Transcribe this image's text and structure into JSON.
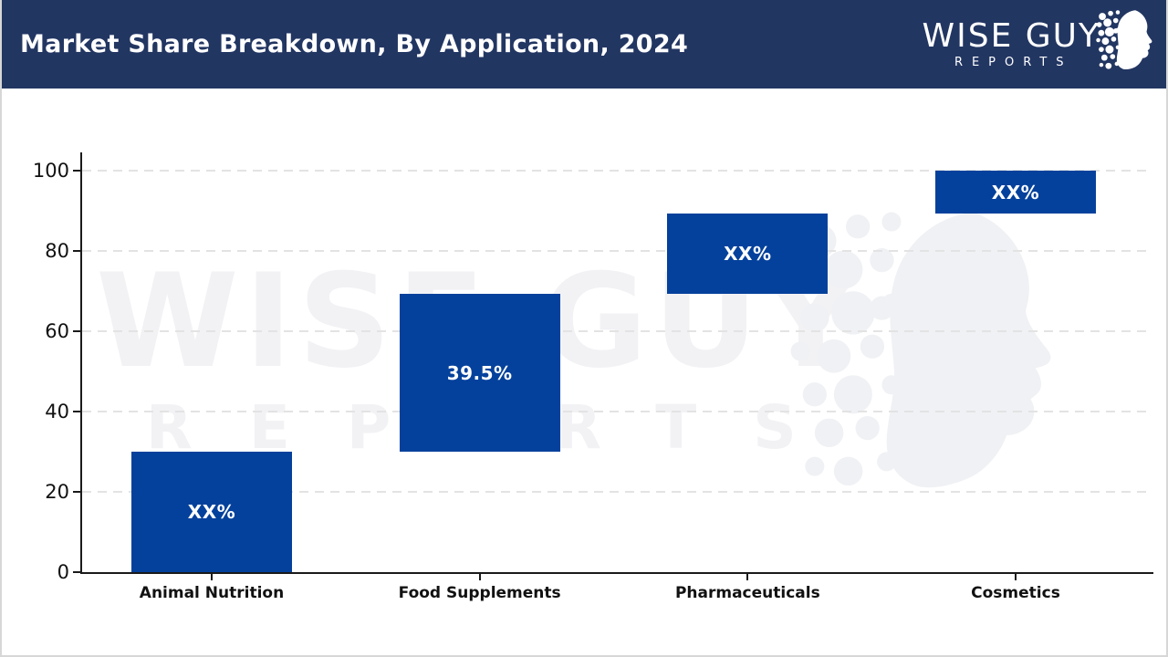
{
  "header": {
    "title": "Market Share Breakdown, By Application, 2024",
    "logo": {
      "brand": "WISE GUY",
      "sub": "REPORTS"
    }
  },
  "watermark": {
    "line1": "WISE GUY",
    "line2": "REPORTS"
  },
  "colors": {
    "header_bg": "#223662",
    "bar": "#04419c",
    "grid": "#e3e3e3",
    "axis": "#1a1a1a",
    "bar_label": "#ffffff",
    "watermark": "#f2f2f5"
  },
  "chart_data": {
    "type": "bar",
    "subtype": "waterfall",
    "title": "Market Share Breakdown, By Application, 2024",
    "categories": [
      "Animal Nutrition",
      "Food Supplements",
      "Pharmaceuticals",
      "Cosmetics"
    ],
    "bars": [
      {
        "category": "Animal Nutrition",
        "label": "XX%",
        "start": 0,
        "end": 29.9
      },
      {
        "category": "Food Supplements",
        "label": "39.5%",
        "start": 29.9,
        "end": 69.4
      },
      {
        "category": "Pharmaceuticals",
        "label": "XX%",
        "start": 69.4,
        "end": 89.3
      },
      {
        "category": "Cosmetics",
        "label": "XX%",
        "start": 89.3,
        "end": 100
      }
    ],
    "y_ticks": [
      0,
      20,
      40,
      60,
      80,
      100
    ],
    "ylim": [
      0,
      105
    ],
    "xlabel": "",
    "ylabel": "",
    "grid": "dashed-horizontal",
    "legend": "none"
  }
}
